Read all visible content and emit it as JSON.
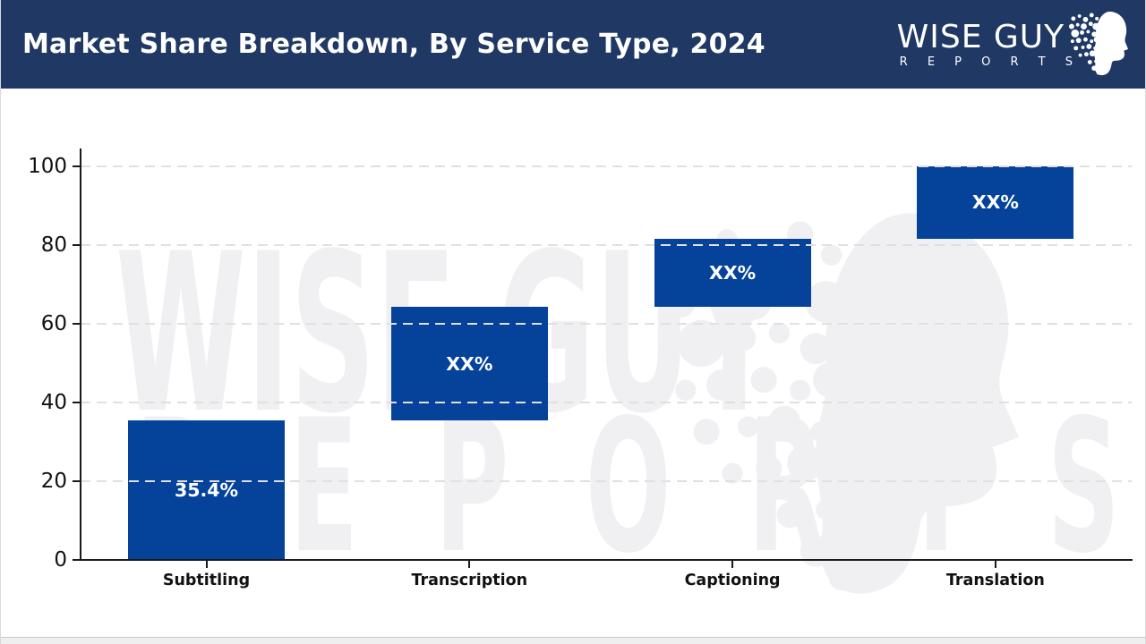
{
  "header": {
    "title": "Market Share Breakdown, By Service Type, 2024",
    "logo": {
      "wordmark": "WISE GUY",
      "subtext": "R E P O R T S"
    }
  },
  "watermark": {
    "line1": "WISE GUY",
    "line2": "R E P O R T S"
  },
  "colors": {
    "header_background": "#1f3864",
    "bar_fill": "#05429a",
    "bar_label_text": "#ffffff",
    "title_text": "#ffffff",
    "axis": "#1a1a1a",
    "gridline": "#e0e0e0",
    "watermark": "#f0f0f3"
  },
  "chart_data": {
    "type": "bar",
    "subtype": "waterfall",
    "title": "Market Share Breakdown, By Service Type, 2024",
    "categories": [
      "Subtitling",
      "Transcription",
      "Captioning",
      "Translation"
    ],
    "segments": [
      {
        "category": "Subtitling",
        "start": 0,
        "end": 35.4,
        "label": "35.4%"
      },
      {
        "category": "Transcription",
        "start": 35.4,
        "end": 64.2,
        "label": "XX%"
      },
      {
        "category": "Captioning",
        "start": 64.2,
        "end": 81.6,
        "label": "XX%"
      },
      {
        "category": "Translation",
        "start": 81.6,
        "end": 100,
        "label": "XX%"
      }
    ],
    "y_ticks": [
      0,
      20,
      40,
      60,
      80,
      100
    ],
    "ylim": [
      0,
      104
    ],
    "xlabel": "",
    "ylabel": "",
    "grid": "horizontal-dashed",
    "legend": "none"
  }
}
